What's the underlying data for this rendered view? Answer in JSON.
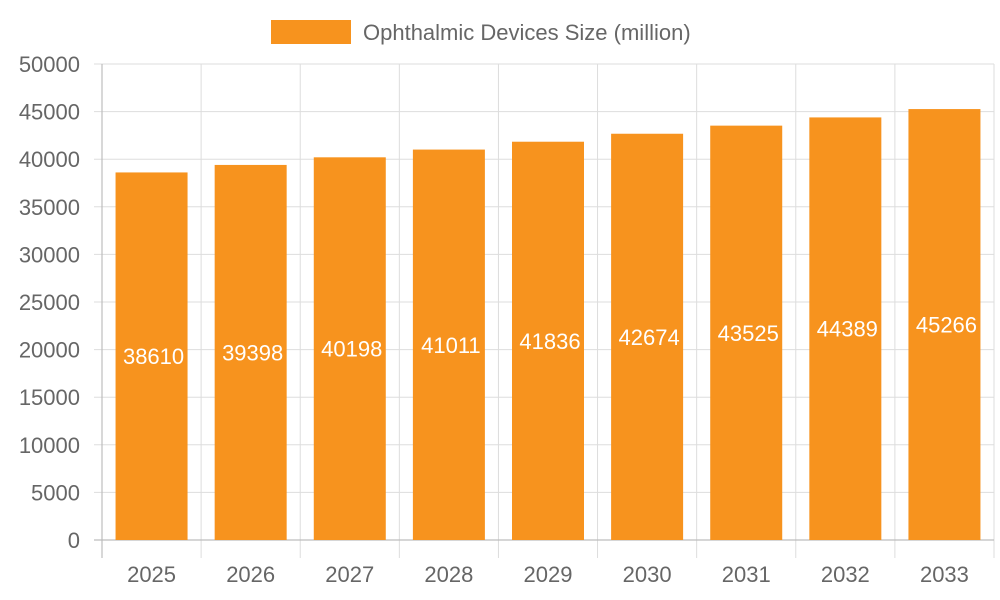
{
  "colors": {
    "bar": "#F7931E",
    "grid": "#DDDDDD",
    "axis": "#BDBDBD",
    "text": "#666666",
    "data_label": "#FFFFFF"
  },
  "chart_data": {
    "type": "bar",
    "title": "",
    "xlabel": "",
    "ylabel": "",
    "categories": [
      "2025",
      "2026",
      "2027",
      "2028",
      "2029",
      "2030",
      "2031",
      "2032",
      "2033"
    ],
    "series": [
      {
        "name": "Ophthalmic Devices Size (million)",
        "values": [
          38610,
          39398,
          40198,
          41011,
          41836,
          42674,
          43525,
          44389,
          45266
        ]
      }
    ],
    "ylim": [
      0,
      50000
    ],
    "yticks": [
      0,
      5000,
      10000,
      15000,
      20000,
      25000,
      30000,
      35000,
      40000,
      45000,
      50000
    ],
    "grid": true,
    "legend_position": "top-center",
    "data_labels": true
  }
}
